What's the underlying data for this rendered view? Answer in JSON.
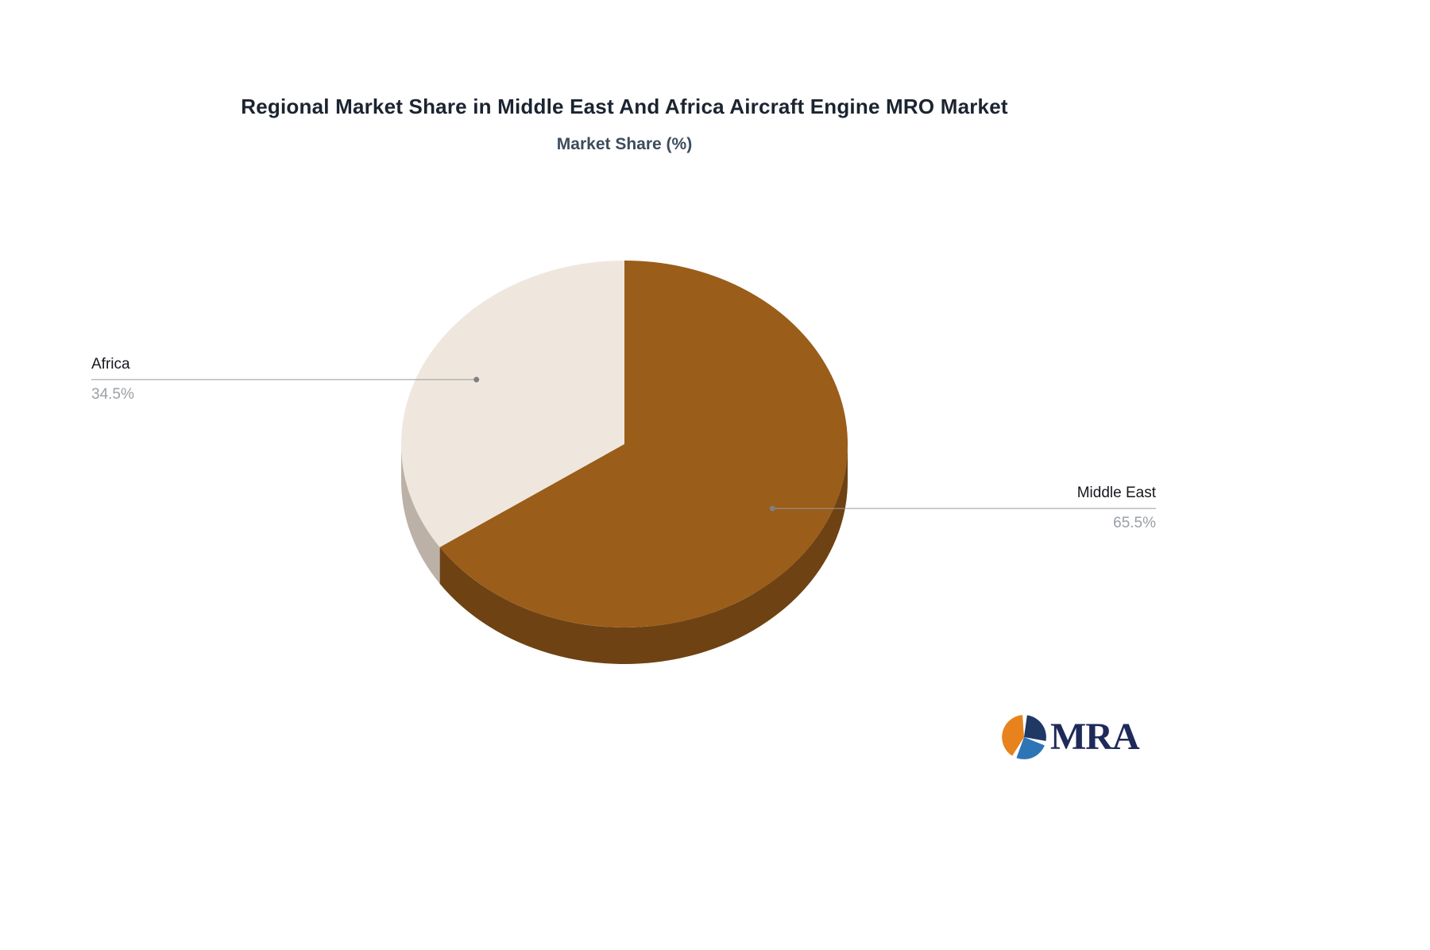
{
  "title": "Regional Market Share in Middle East And Africa Aircraft Engine MRO Market",
  "subtitle": "Market Share (%)",
  "chart_data": {
    "type": "pie",
    "title": "Regional Market Share in Middle East And Africa Aircraft Engine MRO Market",
    "subtitle": "Market Share (%)",
    "categories": [
      "Middle East",
      "Africa"
    ],
    "values": [
      65.5,
      34.5
    ],
    "unit": "%",
    "value_labels": [
      "65.5%",
      "34.5%"
    ],
    "colors": [
      "#9a5d1a",
      "#efe7de"
    ],
    "side_colors": [
      "#6e4212",
      "#bbb1a7"
    ],
    "effect": "3d",
    "start_angle_deg": 0,
    "direction": "clockwise",
    "legend_position": "none",
    "label_position": "outside",
    "leader_line_color": "#999999",
    "leader_dot_color": "#808080",
    "name_color": "#16181d",
    "value_color": "#9aa0a6"
  },
  "logo": {
    "text": "MRA",
    "colors": {
      "orange": "#e8821c",
      "navy": "#1f3864",
      "blue": "#2e75b6",
      "text": "#1e2a5a"
    }
  }
}
